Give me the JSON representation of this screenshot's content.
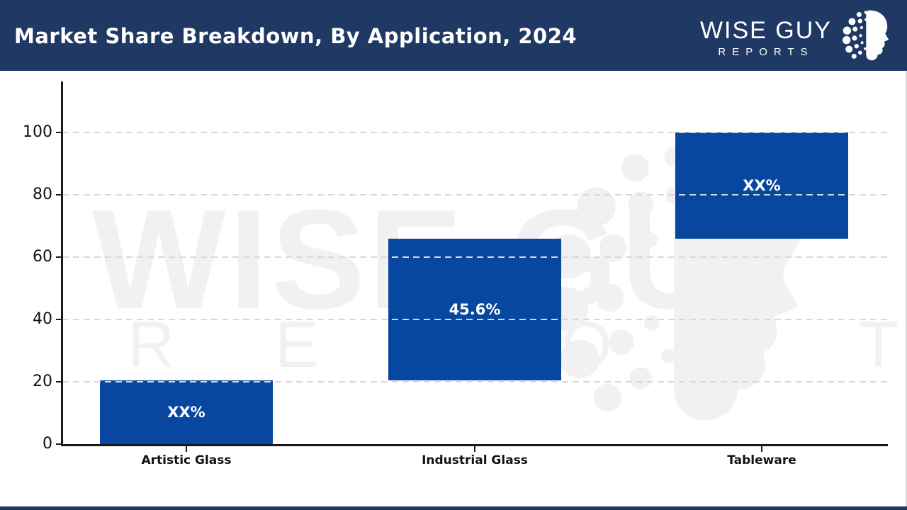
{
  "header": {
    "title": "Market Share Breakdown, By Application, 2024",
    "logo_line1": "WISE GUY",
    "logo_line2": "REPORTS",
    "bg_color": "#1f3864"
  },
  "watermark": {
    "line1": "WISE GUY",
    "line2": "R E P O R T S",
    "color": "#f1f1f1"
  },
  "chart_data": {
    "type": "bar",
    "variant": "floating stacked percentage segments (waterfall-style market share)",
    "title": "Market Share Breakdown, By Application, 2024",
    "categories": [
      "Artistic Glass",
      "Industrial Glass",
      "Tableware"
    ],
    "segments": [
      {
        "category": "Artistic Glass",
        "start": 0,
        "end": 20.4,
        "value_label": "XX%"
      },
      {
        "category": "Industrial Glass",
        "start": 20.4,
        "end": 66.0,
        "value": 45.6,
        "value_label": "45.6%"
      },
      {
        "category": "Tableware",
        "start": 66.0,
        "end": 100,
        "value_label": "XX%"
      }
    ],
    "xlabel": "",
    "ylabel": "",
    "ylim": [
      0,
      100
    ],
    "yticks": [
      0,
      20,
      40,
      60,
      80,
      100
    ],
    "grid": "horizontal dashed, drawn above bars",
    "legend": "none",
    "bar_color": "#0847a0",
    "bar_label_color": "#ffffff",
    "axis_color": "#1a1a1a",
    "gridline_color": "#d8d8d8",
    "header_bg": "#1f3864",
    "bottom_strip_color": "#1f3864",
    "watermark_color": "#f1f1f1"
  }
}
